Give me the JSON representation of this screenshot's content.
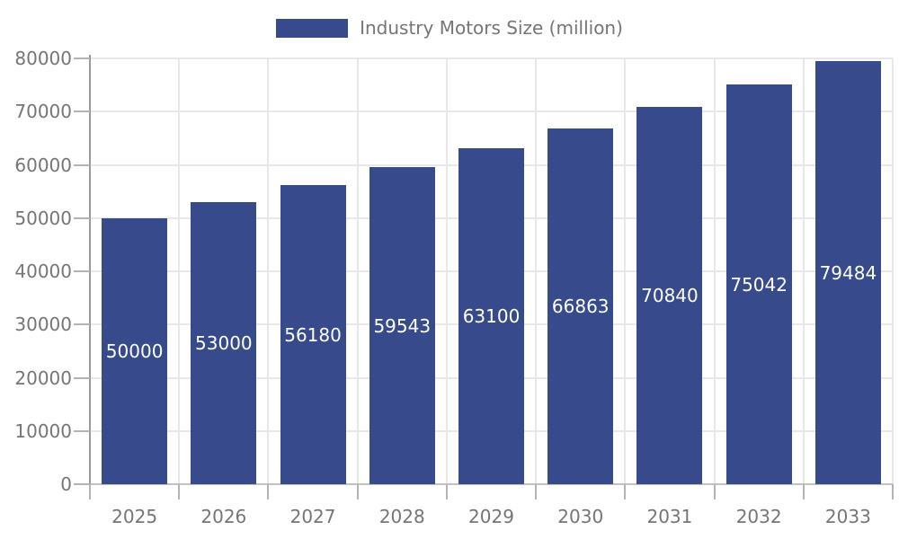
{
  "chart_data": {
    "type": "bar",
    "title": "Industry Motors Size (million)",
    "legend": {
      "position": "top-center",
      "label": "Industry Motors Size (million)"
    },
    "categories": [
      "2025",
      "2026",
      "2027",
      "2028",
      "2029",
      "2030",
      "2031",
      "2032",
      "2033"
    ],
    "series": [
      {
        "name": "Industry Motors Size (million)",
        "values": [
          50000,
          53000,
          56180,
          59543,
          63100,
          66863,
          70840,
          75042,
          79484
        ]
      }
    ],
    "bar_value_labels": [
      "50000",
      "53000",
      "56180",
      "59543",
      "63100",
      "66863",
      "70840",
      "75042",
      "79484"
    ],
    "xlabel": "",
    "ylabel": "",
    "ylim": [
      0,
      80000
    ],
    "y_ticks": [
      0,
      10000,
      20000,
      30000,
      40000,
      50000,
      60000,
      70000,
      80000
    ],
    "grid": true,
    "colors": {
      "bar": "#364A8C",
      "bar_label_text": "#ffffff",
      "axis_text": "#757575",
      "legend_text": "#757575",
      "gridline": "#e8e8e8",
      "axis_line": "#9a9a9a",
      "baseline": "#c2c2c2",
      "tick": "#b3b3b3",
      "background": "#ffffff"
    }
  }
}
